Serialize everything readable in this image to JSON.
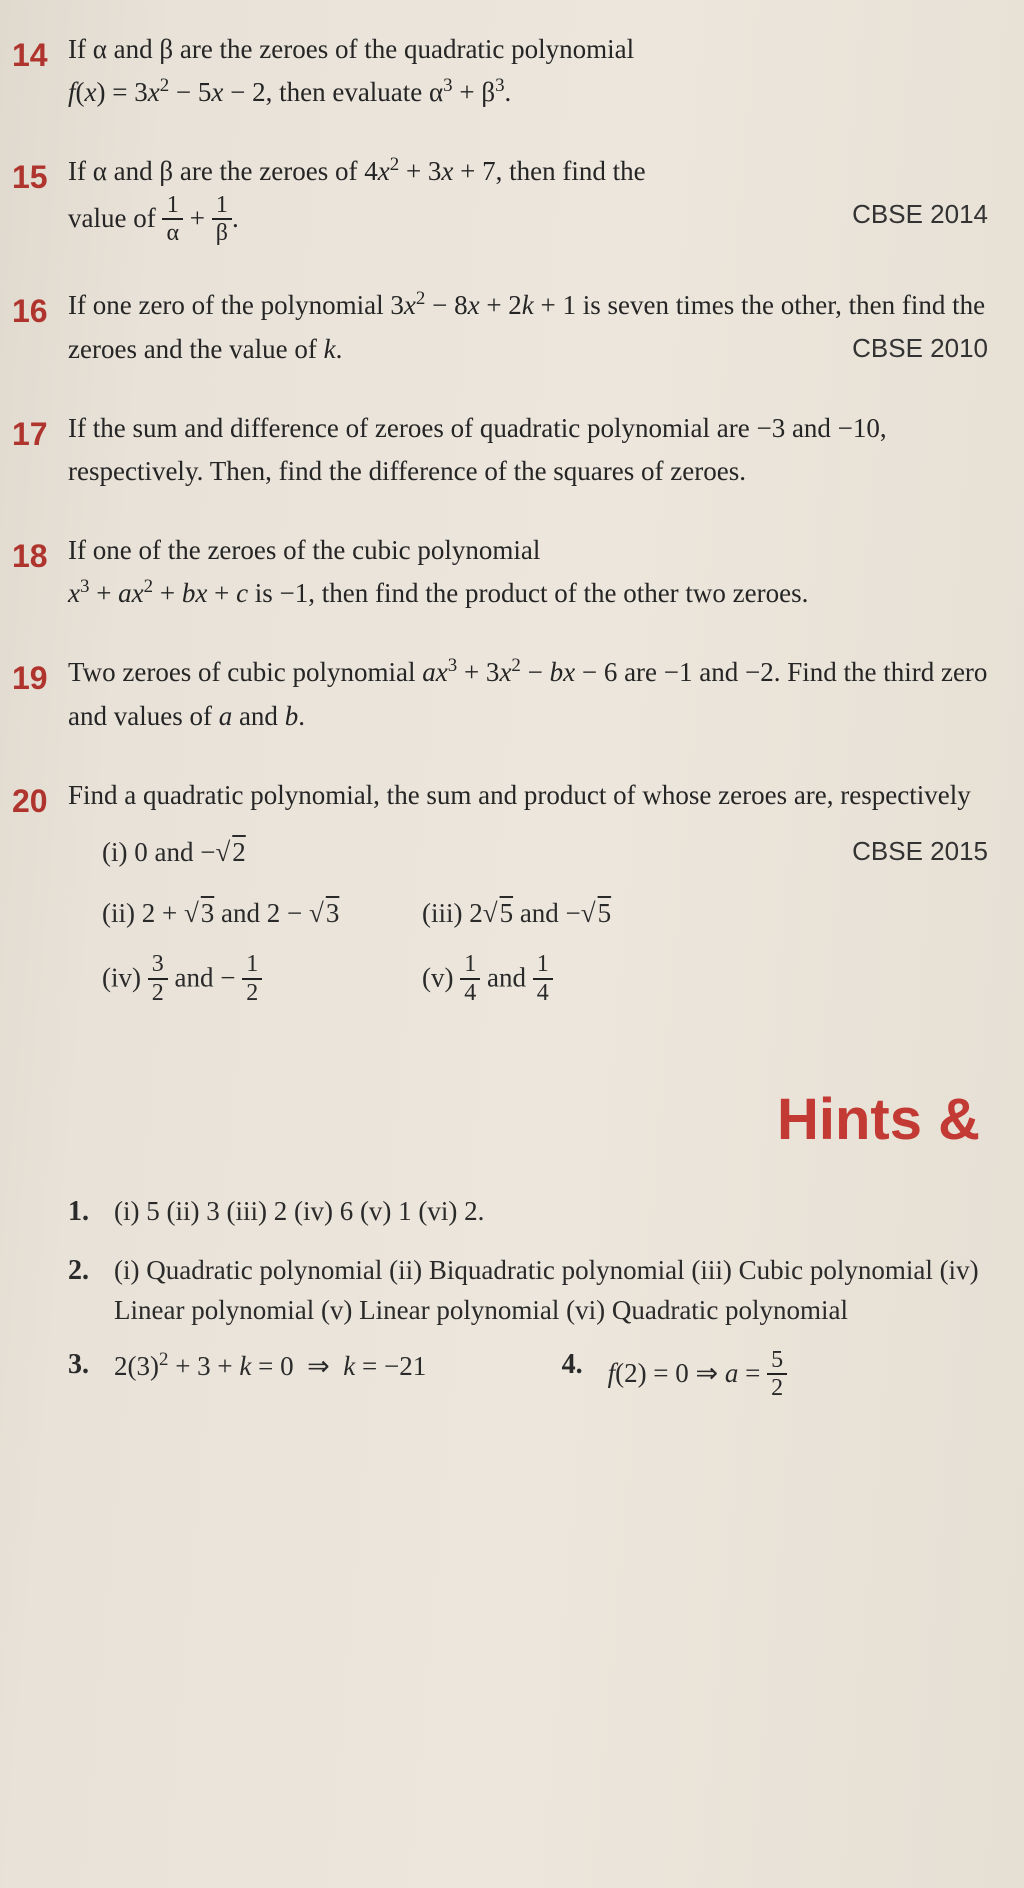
{
  "page": {
    "background_color": "#e8e2d8",
    "text_color": "#2a2a2a",
    "qnum_color": "#b0342e",
    "hints_color": "#c23a33",
    "body_fontsize": 27,
    "qnum_fontsize": 32,
    "hints_fontsize": 58
  },
  "questions": [
    {
      "num": "14",
      "text": "If α and β are the zeroes of the quadratic polynomial f(x) = 3x² − 5x − 2, then evaluate α³ + β³."
    },
    {
      "num": "15",
      "text_a": "If α and β are the zeroes of 4x² + 3x + 7, then find the",
      "text_b": "value of",
      "source": "CBSE 2014"
    },
    {
      "num": "16",
      "text": "If one zero of the polynomial 3x² − 8x + 2k + 1 is seven times the other, then find the zeroes and the value of k.",
      "source": "CBSE 2010"
    },
    {
      "num": "17",
      "text": "If the sum and difference of zeroes of quadratic polynomial are −3 and −10, respectively. Then, find the difference of the squares of zeroes."
    },
    {
      "num": "18",
      "text": "If one of the zeroes of the cubic polynomial x³ + ax² + bx + c is −1, then find the product of the other two zeroes."
    },
    {
      "num": "19",
      "text": "Two zeroes of cubic polynomial ax³ + 3x² − bx − 6 are −1 and −2. Find the third zero and values of a and b."
    },
    {
      "num": "20",
      "text": "Find a quadratic polynomial, the sum and product of whose zeroes are, respectively",
      "source": "CBSE 2015",
      "subs": {
        "i": "(i) 0 and −√2",
        "ii": "(ii) 2 + √3 and 2 − √3",
        "iii": "(iii) 2√5 and −√5",
        "iv_a": "(iv)",
        "iv_b": "and −",
        "v_a": "(v)",
        "v_b": "and"
      }
    }
  ],
  "hints_title": "Hints &",
  "hints": {
    "h1": {
      "num": "1.",
      "text": "(i) 5 (ii) 3 (iii) 2 (iv) 6 (v) 1 (vi) 2."
    },
    "h2": {
      "num": "2.",
      "text": "(i) Quadratic polynomial (ii) Biquadratic polynomial (iii) Cubic polynomial (iv) Linear polynomial (v) Linear polynomial (vi) Quadratic polynomial"
    },
    "h3": {
      "num": "3.",
      "text_a": "2(3)² + 3 + k = 0  ⇒  k = −21"
    },
    "h4": {
      "num": "4.",
      "text_a": "f(2) = 0 ⇒ a ="
    }
  }
}
